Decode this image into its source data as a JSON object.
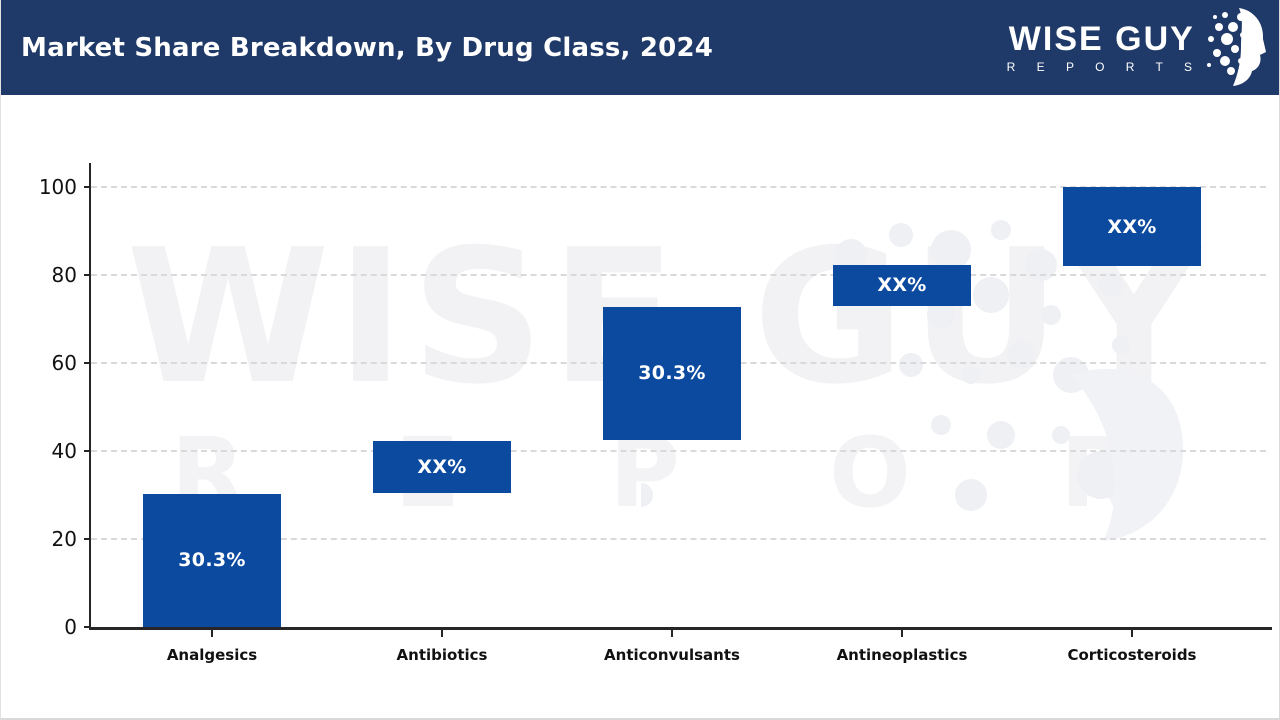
{
  "header": {
    "title": "Market Share Breakdown, By Drug Class, 2024",
    "bg_color": "#1f3a68",
    "logo": {
      "line1": "WISE GUY",
      "line2": "R E P O R T S"
    }
  },
  "watermark": {
    "line1": "WISE GUY",
    "line2": "R E P O R T S"
  },
  "chart_data": {
    "type": "bar",
    "subtype": "waterfall",
    "title": "Market Share Breakdown, By Drug Class, 2024",
    "categories": [
      "Analgesics",
      "Antibiotics",
      "Anticonvulsants",
      "Antineoplastics",
      "Corticosteroids"
    ],
    "segments": [
      {
        "category": "Analgesics",
        "start": 0,
        "end": 30.3,
        "label": "30.3%"
      },
      {
        "category": "Antibiotics",
        "start": 30.5,
        "end": 42.3,
        "label": "XX%"
      },
      {
        "category": "Anticonvulsants",
        "start": 42.6,
        "end": 72.7,
        "label": "30.3%"
      },
      {
        "category": "Antineoplastics",
        "start": 73.0,
        "end": 82.3,
        "label": "XX%"
      },
      {
        "category": "Corticosteroids",
        "start": 82.0,
        "end": 100.0,
        "label": "XX%"
      }
    ],
    "yticks": [
      0,
      20,
      40,
      60,
      80,
      100
    ],
    "ylim": [
      0,
      100
    ],
    "bar_color": "#0b4a9f",
    "label_color": "#ffffff",
    "grid": "dashed-horizontal",
    "legend": "none"
  }
}
